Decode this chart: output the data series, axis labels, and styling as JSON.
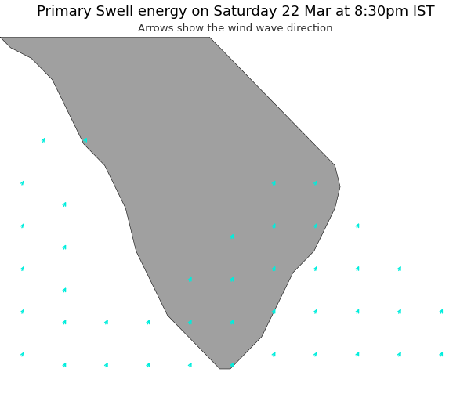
{
  "title": "Primary Swell energy on Saturday 22 Mar at 8:30pm IST",
  "subtitle": "Arrows show the wind wave direction",
  "title_fontsize": 13.0,
  "subtitle_fontsize": 9.5,
  "fig_width": 6.01,
  "fig_height": 5.12,
  "dpi": 100,
  "header_bg": "#ffffff",
  "arrow_color": "#00eedd",
  "land_color_flat": "#a8a8a8",
  "ocean_color": "#000008",
  "ocean_blue_left": "#00001a",
  "lonmin": 60.0,
  "lonmax": 105.0,
  "latmin": 4.0,
  "latmax": 38.0,
  "arrows": [
    [
      62.0,
      8.0,
      -35
    ],
    [
      62.0,
      12.0,
      -35
    ],
    [
      62.0,
      16.0,
      -35
    ],
    [
      62.0,
      20.0,
      -35
    ],
    [
      62.0,
      24.0,
      -35
    ],
    [
      66.0,
      7.0,
      -35
    ],
    [
      66.0,
      11.0,
      -35
    ],
    [
      66.0,
      14.0,
      -35
    ],
    [
      66.0,
      18.0,
      -35
    ],
    [
      66.0,
      22.0,
      -35
    ],
    [
      70.0,
      7.0,
      -35
    ],
    [
      70.0,
      11.0,
      -35
    ],
    [
      74.0,
      7.0,
      -35
    ],
    [
      74.0,
      11.0,
      -35
    ],
    [
      78.0,
      7.0,
      -35
    ],
    [
      78.0,
      11.0,
      -35
    ],
    [
      78.0,
      15.0,
      -35
    ],
    [
      82.0,
      7.0,
      -35
    ],
    [
      82.0,
      11.0,
      -35
    ],
    [
      82.0,
      15.0,
      -35
    ],
    [
      82.0,
      19.0,
      -35
    ],
    [
      86.0,
      8.0,
      -35
    ],
    [
      86.0,
      12.0,
      -35
    ],
    [
      86.0,
      16.0,
      -35
    ],
    [
      86.0,
      20.0,
      -35
    ],
    [
      86.0,
      24.0,
      -35
    ],
    [
      90.0,
      8.0,
      -35
    ],
    [
      90.0,
      12.0,
      -35
    ],
    [
      90.0,
      16.0,
      -35
    ],
    [
      90.0,
      20.0,
      -35
    ],
    [
      90.0,
      24.0,
      -35
    ],
    [
      94.0,
      8.0,
      -35
    ],
    [
      94.0,
      12.0,
      -35
    ],
    [
      94.0,
      16.0,
      -35
    ],
    [
      94.0,
      20.0,
      -35
    ],
    [
      98.0,
      8.0,
      -35
    ],
    [
      98.0,
      12.0,
      -35
    ],
    [
      98.0,
      16.0,
      -35
    ],
    [
      102.0,
      8.0,
      -35
    ],
    [
      102.0,
      12.0,
      -35
    ],
    [
      64.0,
      28.0,
      -35
    ],
    [
      68.0,
      28.0,
      -35
    ]
  ]
}
